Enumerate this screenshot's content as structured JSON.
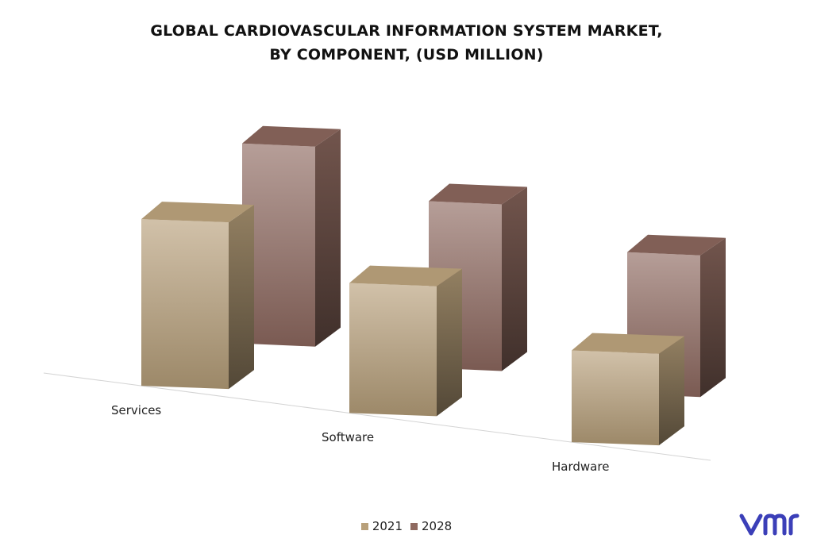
{
  "chart_data": {
    "type": "bar",
    "title_lines": [
      "GLOBAL CARDIOVASCULAR INFORMATION SYSTEM MARKET,",
      "BY COMPONENT, (USD MILLION)"
    ],
    "categories": [
      "Services",
      "Software",
      "Hardware"
    ],
    "series": [
      {
        "name": "2021",
        "values": [
          100,
          78,
          55
        ],
        "color": "#b8a07a"
      },
      {
        "name": "2028",
        "values": [
          120,
          100,
          85
        ],
        "color": "#8f6a60"
      }
    ],
    "ylim": [
      0,
      130
    ],
    "grid": false,
    "legend_position": "bottom"
  },
  "logo": {
    "text": "vmr",
    "color": "#3b3fb8"
  }
}
